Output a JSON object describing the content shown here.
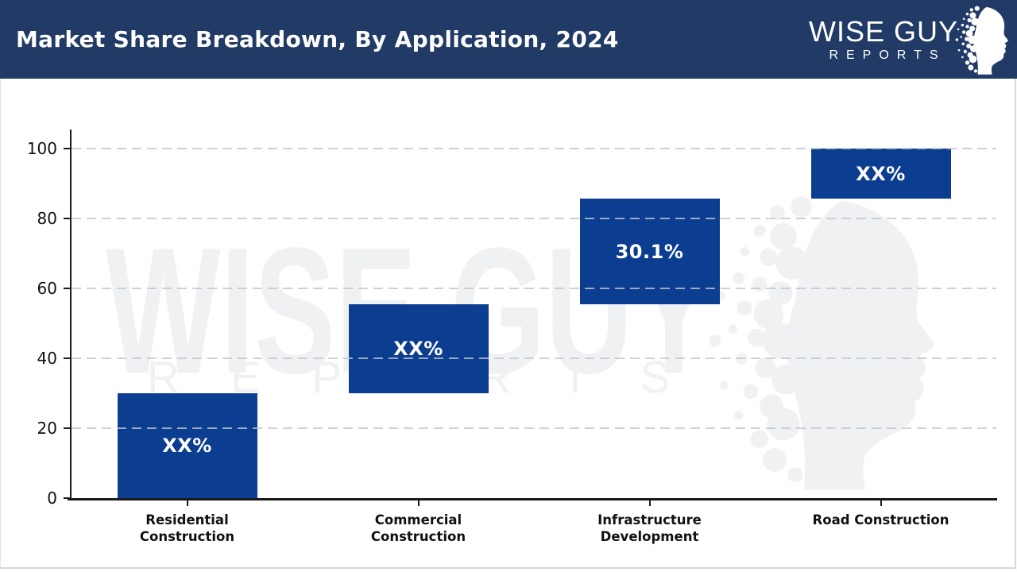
{
  "header": {
    "title": "Market Share Breakdown, By Application, 2024",
    "logo": {
      "wordmark": "WISE GUY",
      "subtitle": "REPORTS"
    }
  },
  "watermark": {
    "wordmark": "WISE GUY",
    "subtitle": "REPORTS"
  },
  "chart_data": {
    "type": "bar",
    "subtype": "waterfall",
    "title": "Market Share Breakdown, By Application, 2024",
    "categories": [
      "Residential\nConstruction",
      "Commercial\nConstruction",
      "Infrastructure\nDevelopment",
      "Road Construction"
    ],
    "segments": [
      {
        "category": "Residential Construction",
        "start": 0,
        "end": 30,
        "value": 30,
        "label": "XX%"
      },
      {
        "category": "Commercial Construction",
        "start": 30,
        "end": 55.5,
        "value": 25.5,
        "label": "XX%"
      },
      {
        "category": "Infrastructure Development",
        "start": 55.5,
        "end": 85.6,
        "value": 30.1,
        "label": "30.1%"
      },
      {
        "category": "Road Construction",
        "start": 85.6,
        "end": 100,
        "value": 14.4,
        "label": "XX%"
      }
    ],
    "xlabel": "",
    "ylabel": "",
    "ylim": [
      0,
      100
    ],
    "yticks": [
      0,
      20,
      40,
      60,
      80,
      100
    ],
    "grid": {
      "visible": true,
      "style": "dashed",
      "drawn_over_bars": true
    },
    "legend": null
  },
  "colors": {
    "header_bg": "#213a66",
    "bar_fill": "#0b3d91",
    "bar_label_text": "#ffffff",
    "axis_text": "#111111",
    "axis_line": "#1a1a1a",
    "gridline": "#d4d7dc",
    "watermark": "#f0f1f3",
    "canvas_bg": "#ffffff"
  }
}
